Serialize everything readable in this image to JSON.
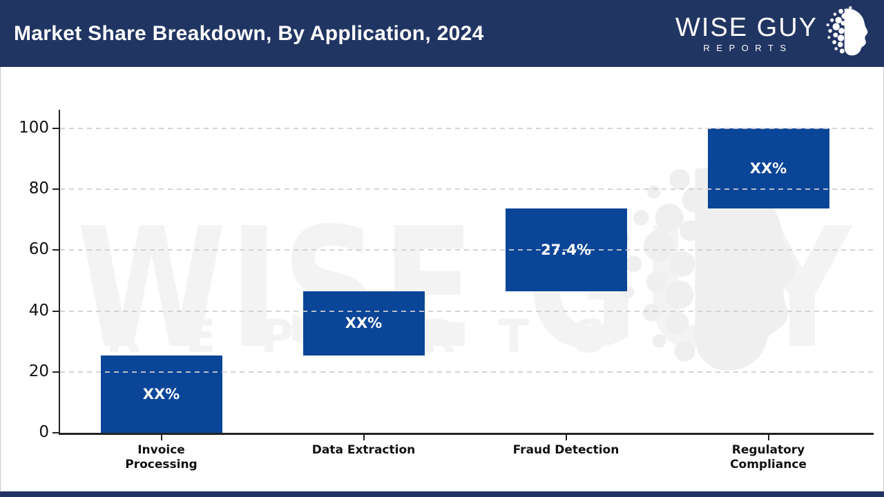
{
  "header": {
    "title": "Market Share Breakdown, By Application, 2024",
    "logo": {
      "line1": "WISE GUY",
      "line2": "REPORTS"
    }
  },
  "watermark": {
    "line1": "WISE GUY",
    "line2": "REPORTS"
  },
  "colors": {
    "header_bg": "#213563",
    "bar": "#0a4598",
    "bar_label": "#ffffff",
    "grid": "#cfcfcf",
    "axis": "#222222",
    "watermark": "#f3f3f3"
  },
  "chart_data": {
    "type": "bar",
    "subtype": "floating-segment-waterfall",
    "title": "Market Share Breakdown, By Application, 2024",
    "categories": [
      "Invoice Processing",
      "Data Extraction",
      "Fraud Detection",
      "Regulatory Compliance"
    ],
    "bars": [
      {
        "category": "Invoice Processing",
        "start": 0,
        "end": 25.5,
        "label": "XX%"
      },
      {
        "category": "Data Extraction",
        "start": 25.5,
        "end": 46.4,
        "label": "XX%"
      },
      {
        "category": "Fraud Detection",
        "start": 46.4,
        "end": 73.8,
        "label": "27.4%"
      },
      {
        "category": "Regulatory Compliance",
        "start": 73.8,
        "end": 100,
        "label": "XX%"
      }
    ],
    "ylim": [
      0,
      100
    ],
    "yticks": [
      0,
      20,
      40,
      60,
      80,
      100
    ],
    "xlabel": "",
    "ylabel": "",
    "grid": "horizontal-dashed",
    "legend": "none"
  }
}
